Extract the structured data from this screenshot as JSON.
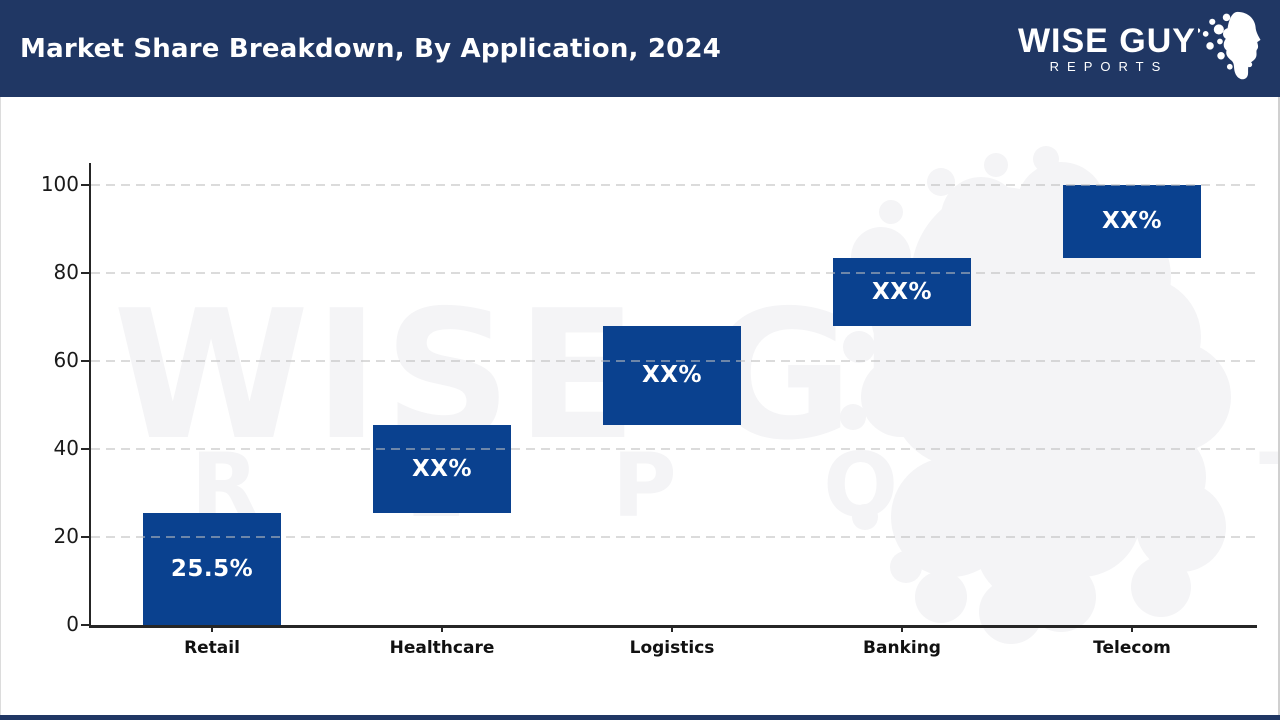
{
  "header": {
    "title": "Market Share Breakdown, By Application, 2024",
    "logo": {
      "line1": "WISE GUY",
      "line2": "REPORTS",
      "icon": "dotted-head-profile"
    }
  },
  "watermark": {
    "line1": "WISE GUY",
    "line2": "R E P O R T S"
  },
  "footer": {},
  "colors": {
    "header_background": "#203764",
    "bar_fill": "#0a418f",
    "bar_label_text": "#ffffff",
    "gridline": "#d9d9d9",
    "axis": "#262626",
    "watermark": "#f4f4f6"
  },
  "chart_data": {
    "type": "bar",
    "subtype": "floating-waterfall",
    "title": "Market Share Breakdown, By Application, 2024",
    "xlabel": "",
    "ylabel": "",
    "categories": [
      "Retail",
      "Healthcare",
      "Logistics",
      "Banking",
      "Telecom"
    ],
    "segments": [
      {
        "category": "Retail",
        "start": 0,
        "end": 25.5,
        "label": "25.5%"
      },
      {
        "category": "Healthcare",
        "start": 25.5,
        "end": 45.5,
        "label": "XX%"
      },
      {
        "category": "Logistics",
        "start": 45.5,
        "end": 68,
        "label": "XX%"
      },
      {
        "category": "Banking",
        "start": 68,
        "end": 83.5,
        "label": "XX%"
      },
      {
        "category": "Telecom",
        "start": 83.5,
        "end": 100,
        "label": "XX%"
      }
    ],
    "yticks": [
      0,
      20,
      40,
      60,
      80,
      100
    ],
    "ylim": [
      0,
      105
    ],
    "grid": true,
    "grid_style": "dashed",
    "legend": "none",
    "bar_color": "#0a418f"
  }
}
